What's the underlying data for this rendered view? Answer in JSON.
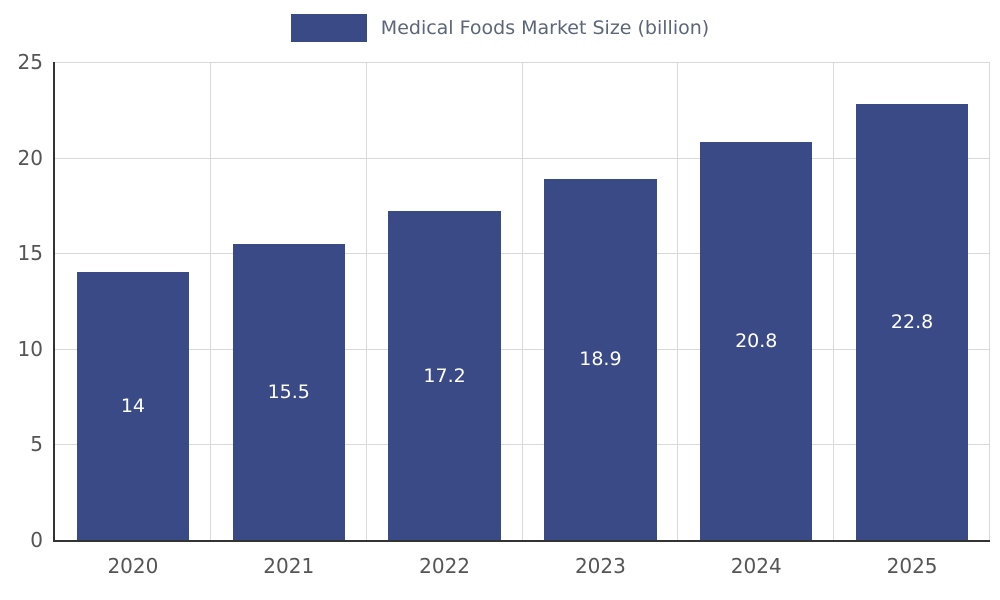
{
  "chart_data": {
    "type": "bar",
    "title": "Medical Foods Market Size (billion)",
    "categories": [
      "2020",
      "2021",
      "2022",
      "2023",
      "2024",
      "2025"
    ],
    "values": [
      14,
      15.5,
      17.2,
      18.9,
      20.8,
      22.8
    ],
    "value_labels": [
      "14",
      "15.5",
      "17.2",
      "18.9",
      "20.8",
      "22.8"
    ],
    "xlabel": "",
    "ylabel": "",
    "ylim": [
      0,
      25
    ],
    "yticks": [
      0,
      5,
      10,
      15,
      20,
      25
    ],
    "grid": true,
    "legend_position": "top-center",
    "bar_color": "#3a4a87",
    "value_label_color": "#ffffff"
  },
  "legend": {
    "label": "Medical Foods Market Size (billion)"
  }
}
